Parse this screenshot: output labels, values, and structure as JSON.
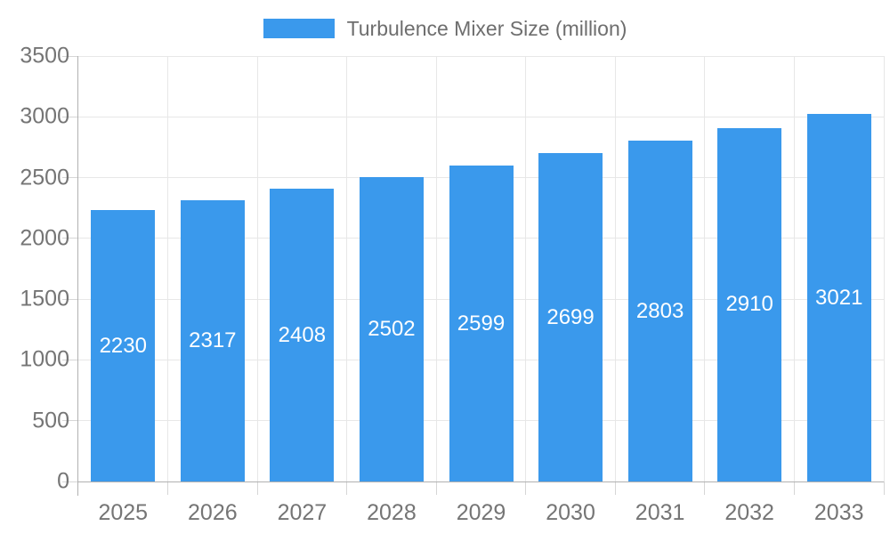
{
  "chart_data": {
    "type": "bar",
    "title": "Turbulence Mixer Size (million)",
    "categories": [
      "2025",
      "2026",
      "2027",
      "2028",
      "2029",
      "2030",
      "2031",
      "2032",
      "2033"
    ],
    "series": [
      {
        "name": "Turbulence Mixer Size (million)",
        "values": [
          2230,
          2317,
          2408,
          2502,
          2599,
          2699,
          2803,
          2910,
          3021
        ]
      }
    ],
    "xlabel": "",
    "ylabel": "",
    "ylim": [
      0,
      3500
    ],
    "ytick_step": 500,
    "grid": true,
    "legend_position": "top",
    "colors": {
      "bar": "#3a99ec",
      "bar_label": "#ffffff",
      "axis_text": "#757575",
      "legend_text": "#6e6e6e",
      "gridline": "#e7e7e7",
      "axis_line": "#b1b1b1",
      "tick": "#d6d6d6",
      "background": "#ffffff"
    }
  }
}
